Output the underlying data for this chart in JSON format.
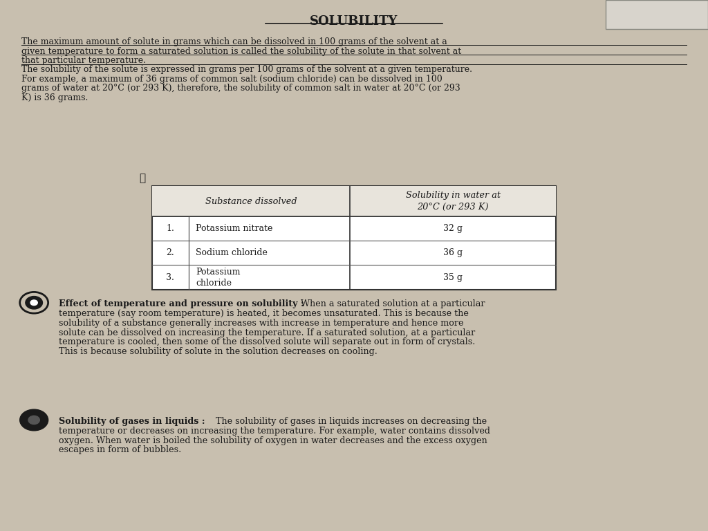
{
  "title": "SOLUBILITY",
  "background_color": "#c8bfaf",
  "text_color": "#1a1a1a",
  "para1": "The maximum amount of solute in grams which can be dissolved in 100 grams of the solvent at a given temperature to form a saturated solution is called the solubility of the solute in that solvent at that particular temperature.",
  "para2": "The solubility of the solute is expressed in grams per 100 grams of the solvent at a given temperature. For example, a maximum of 36 grams of common salt (sodium chloride) can be dissolved in 100 grams of water at 20°C (or 293 K), therefore, the solubility of common salt in water at 20°C (or 293 K) is 36 grams.",
  "table_header1": "Substance dissolved",
  "table_header2": "Solubility in water at\n20°C (or 293 K)",
  "table_rows": [
    [
      "1.",
      "Potassium nitrate",
      "32 g"
    ],
    [
      "2.",
      "Sodium chloride",
      "36 g"
    ],
    [
      "3.",
      "Potassium\nchloride",
      "35 g"
    ]
  ],
  "section1_title": "Effect of temperature and pressure on solubility : ",
  "section1_body": "When a saturated solution at a particular temperature (say room temperature) is heated, it becomes unsaturated. This is because the solubility of a substance generally increases with increase in temperature and hence more solute can be dissolved on increasing the temperature. If a saturated solution, at a particular temperature is cooled, then some of the dissolved solute will separate out in form of crystals. This is because solubility of solute in the solution decreases on cooling.",
  "section2_title": "Solubility of gases in liquids : ",
  "section2_body": "The solubility of gases in liquids increases on decreasing the temperature or decreases on increasing the temperature. For example, water contains dissolved oxygen. When water is boiled the solubility of oxygen in water decreases and the excess oxygen escapes in form of bubbles."
}
